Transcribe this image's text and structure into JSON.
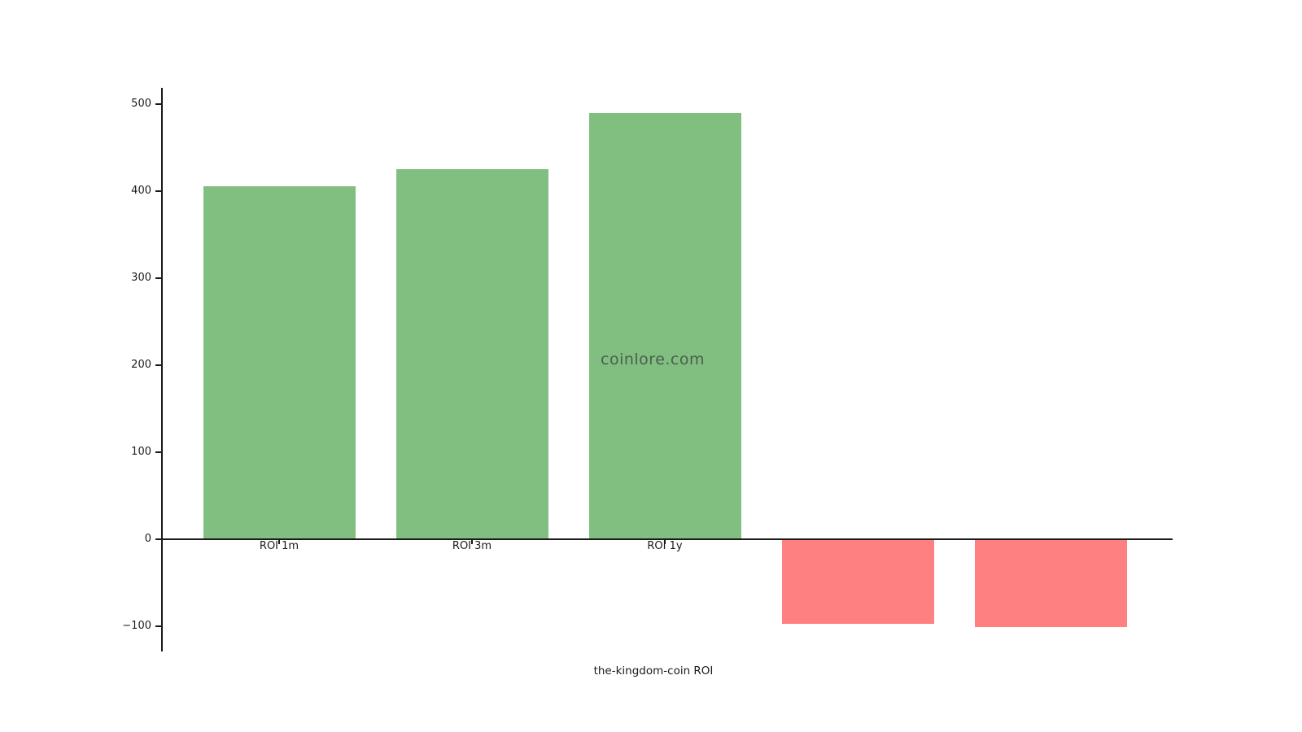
{
  "chart_data": {
    "type": "bar",
    "categories": [
      "ROI 1m",
      "ROI 3m",
      "ROI 1y",
      "",
      ""
    ],
    "values": [
      406,
      425,
      490,
      -96,
      -100
    ],
    "bar_colors": [
      "#80BF80",
      "#80BF80",
      "#80BF80",
      "#FF8080",
      "#FF8080"
    ],
    "positive_color": "#80BF80",
    "negative_color": "#FF8080",
    "yticks": [
      500,
      400,
      300,
      200,
      100,
      0,
      -100
    ],
    "ylim": [
      -130,
      520
    ],
    "xlabel": "the-kingdom-coin ROI",
    "ylabel": "",
    "title": "",
    "watermark": "coinlore.com",
    "grid": false,
    "legend": false,
    "axis_color": "#1a1a1a",
    "background_color": "#ffffff"
  }
}
